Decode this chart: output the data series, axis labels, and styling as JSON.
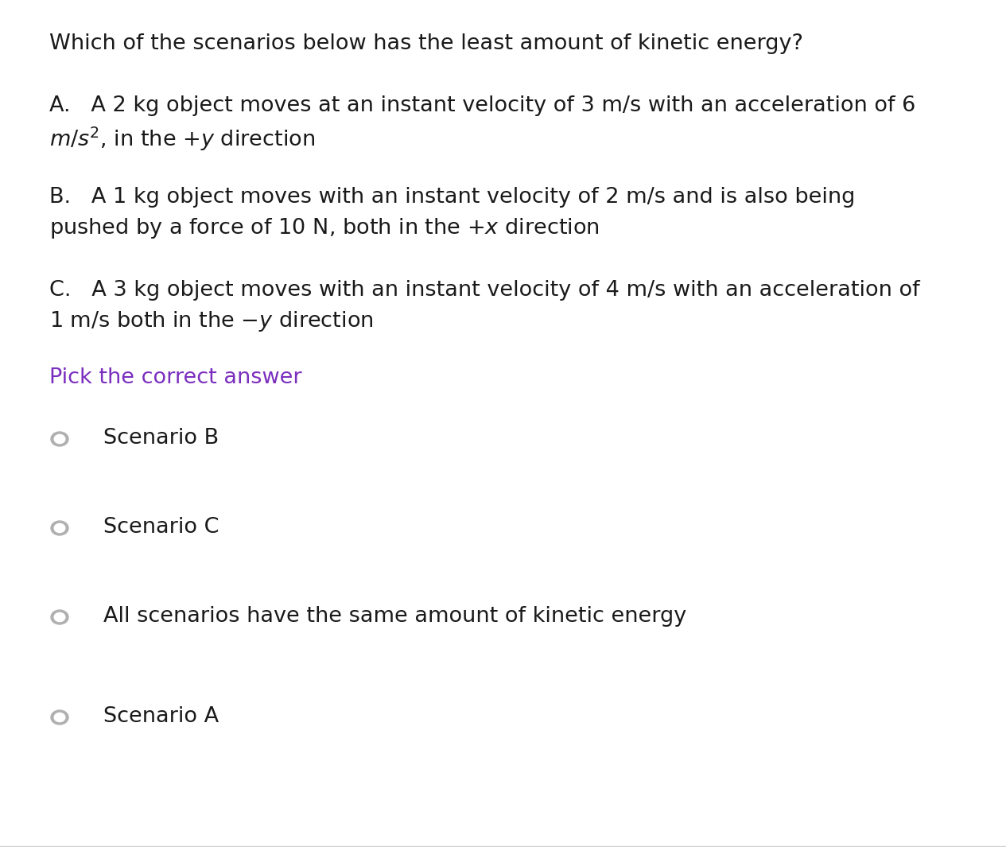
{
  "bg_color": "#ffffff",
  "question": "Which of the scenarios below has the least amount of kinetic energy?",
  "question_fontsize": 19.5,
  "question_color": "#1a1a1a",
  "scenario_A_line1": "A.   A 2 kg object moves at an instant velocity of 3 m/s with an acceleration of 6",
  "scenario_A_line2": "$m/s^2$, in the $+y$ direction",
  "scenario_B_line1": "B.   A 1 kg object moves with an instant velocity of 2 m/s and is also being",
  "scenario_B_line2": "pushed by a force of 10 N, both in the $+x$ direction",
  "scenario_C_line1": "C.   A 3 kg object moves with an instant velocity of 4 m/s with an acceleration of",
  "scenario_C_line2": "1 m/s both in the $-y$ direction",
  "scenario_fontsize": 19.5,
  "scenario_color": "#1a1a1a",
  "pick_text": "Pick the correct answer",
  "pick_color": "#7b2fbe",
  "pick_fontsize": 19.5,
  "choices": [
    "Scenario B",
    "Scenario C",
    "All scenarios have the same amount of kinetic energy",
    "Scenario A"
  ],
  "choice_fontsize": 19.5,
  "choice_color": "#1a1a1a",
  "radio_color": "#b0b0b0",
  "line_color": "#d0d0d0",
  "fig_width": 12.65,
  "fig_height": 10.65,
  "dpi": 100
}
